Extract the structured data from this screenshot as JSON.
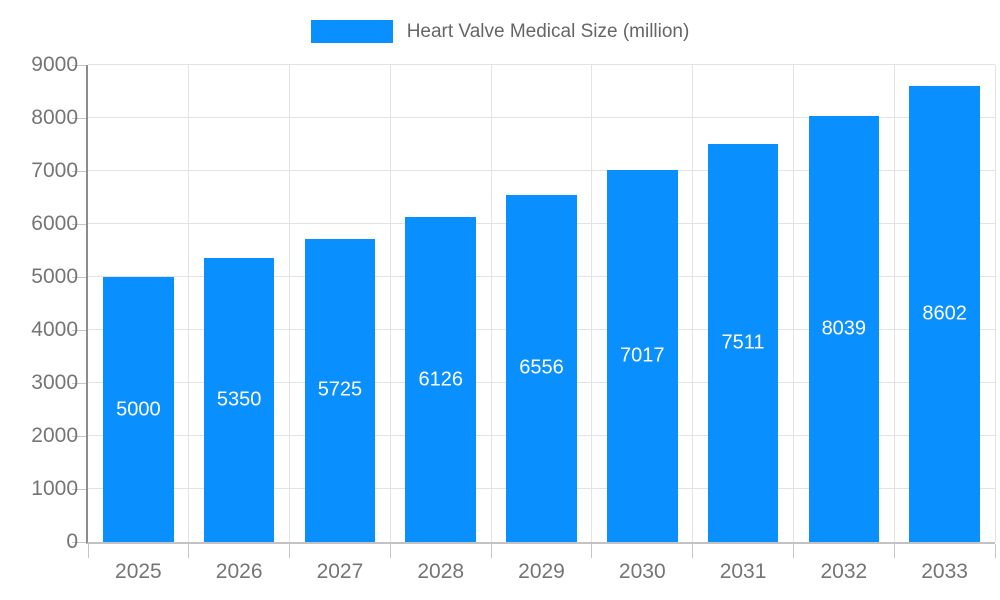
{
  "legend": {
    "label": "Heart Valve Medical Size (million)"
  },
  "chart_data": {
    "type": "bar",
    "title": "",
    "xlabel": "",
    "ylabel": "",
    "categories": [
      "2025",
      "2026",
      "2027",
      "2028",
      "2029",
      "2030",
      "2031",
      "2032",
      "2033"
    ],
    "series": [
      {
        "name": "Heart Valve Medical Size (million)",
        "values": [
          5000,
          5350,
          5725,
          6126,
          6556,
          7017,
          7511,
          8039,
          8602
        ]
      }
    ],
    "value_labels_shown": true,
    "ylim": [
      0,
      9000
    ],
    "yticks": [
      0,
      1000,
      2000,
      3000,
      4000,
      5000,
      6000,
      7000,
      8000,
      9000
    ],
    "grid": true,
    "legend_position": "top"
  },
  "colors": {
    "bar": "#0a8fff",
    "bar_value_text": "#ffffff",
    "grid": "#e3e3e3",
    "tick": "#c6c6c6",
    "y_axis_line": "#8c8c8c",
    "x_axis_line": "#c2c2c2",
    "axis_text": "#757575",
    "legend_text": "#666666",
    "background": "#ffffff"
  }
}
